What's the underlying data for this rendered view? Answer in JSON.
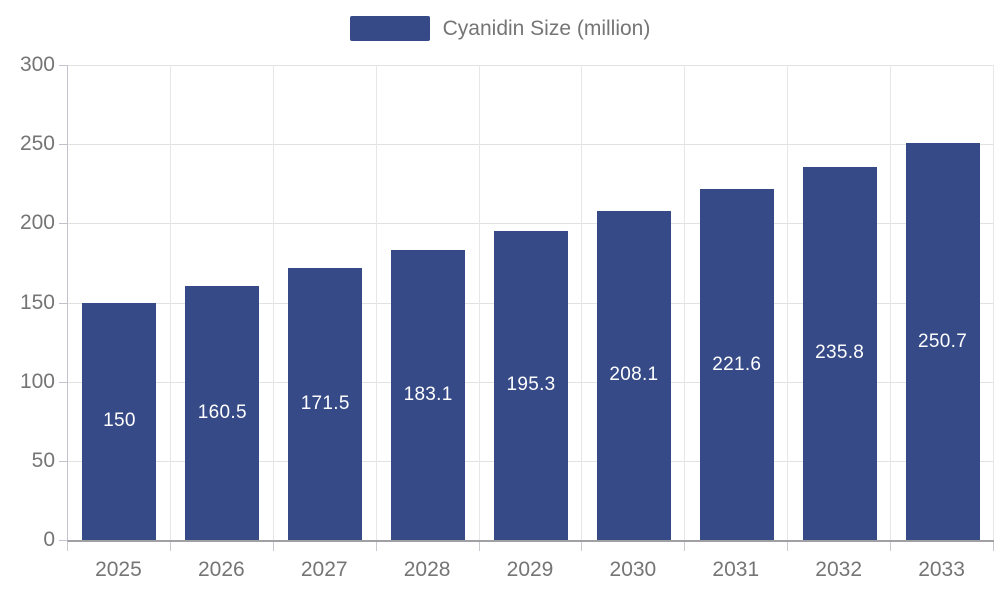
{
  "chart_data": {
    "type": "bar",
    "legend_label": "Cyanidin Size (million)",
    "legend_position": "top",
    "categories": [
      "2025",
      "2026",
      "2027",
      "2028",
      "2029",
      "2030",
      "2031",
      "2032",
      "2033"
    ],
    "series": [
      {
        "name": "Cyanidin Size (million)",
        "values": [
          150,
          160.5,
          171.5,
          183.1,
          195.3,
          208.1,
          221.6,
          235.8,
          250.7
        ]
      }
    ],
    "xlabel": "",
    "ylabel": "",
    "ylim": [
      0,
      300
    ],
    "yticks": [
      0,
      50,
      100,
      150,
      200,
      250,
      300
    ],
    "grid": true,
    "colors": {
      "bar": "#364a87",
      "bar_label": "#ffffff",
      "axis_text": "#757575",
      "grid_line": "#e2e2e2",
      "axis_line": "#a0a0a4"
    }
  }
}
